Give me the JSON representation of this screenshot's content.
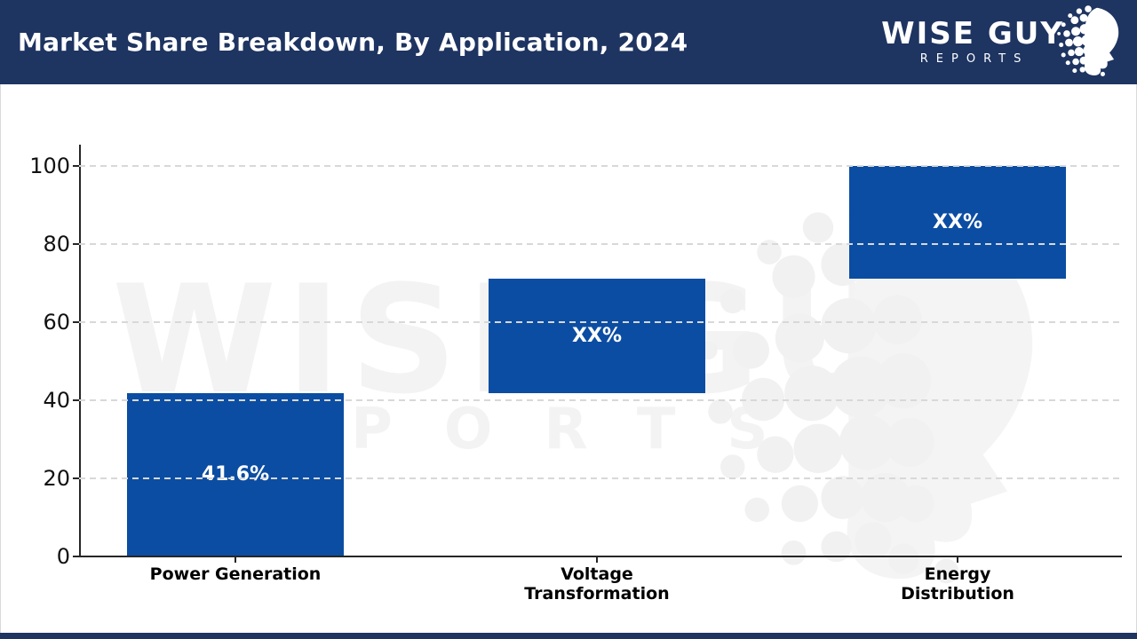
{
  "header": {
    "title": "Market Share Breakdown, By Application, 2024",
    "logo_line1": "WISE GUY",
    "logo_line2": "REPORTS"
  },
  "watermark": {
    "line1": "WISE GUY",
    "line2": "REPORTS"
  },
  "colors": {
    "brand_navy": "#1e3461",
    "bar_blue": "#0b4da2",
    "axis": "#262626",
    "gridline": "#d8d8d8",
    "bar_label_text": "#ffffff",
    "tick_text": "#111111"
  },
  "chart_data": {
    "type": "bar",
    "subtype": "waterfall",
    "title": "Market Share Breakdown, By Application, 2024",
    "categories": [
      "Power Generation",
      "Voltage\nTransformation",
      "Energy\nDistribution"
    ],
    "segments": [
      {
        "category": "Power Generation",
        "start": 0,
        "end": 41.6,
        "value": 41.6,
        "label": "41.6%"
      },
      {
        "category": "Voltage Transformation",
        "start": 41.6,
        "end": 71,
        "value": 29.4,
        "label": "XX%"
      },
      {
        "category": "Energy Distribution",
        "start": 71,
        "end": 100,
        "value": 29.0,
        "label": "XX%"
      }
    ],
    "yticks": [
      0,
      20,
      40,
      60,
      80,
      100
    ],
    "ylim": [
      0,
      105
    ],
    "xlabel": "",
    "ylabel": "",
    "grid": "horizontal-dashed",
    "legend": "none",
    "bar_color": "#0b4da2"
  }
}
